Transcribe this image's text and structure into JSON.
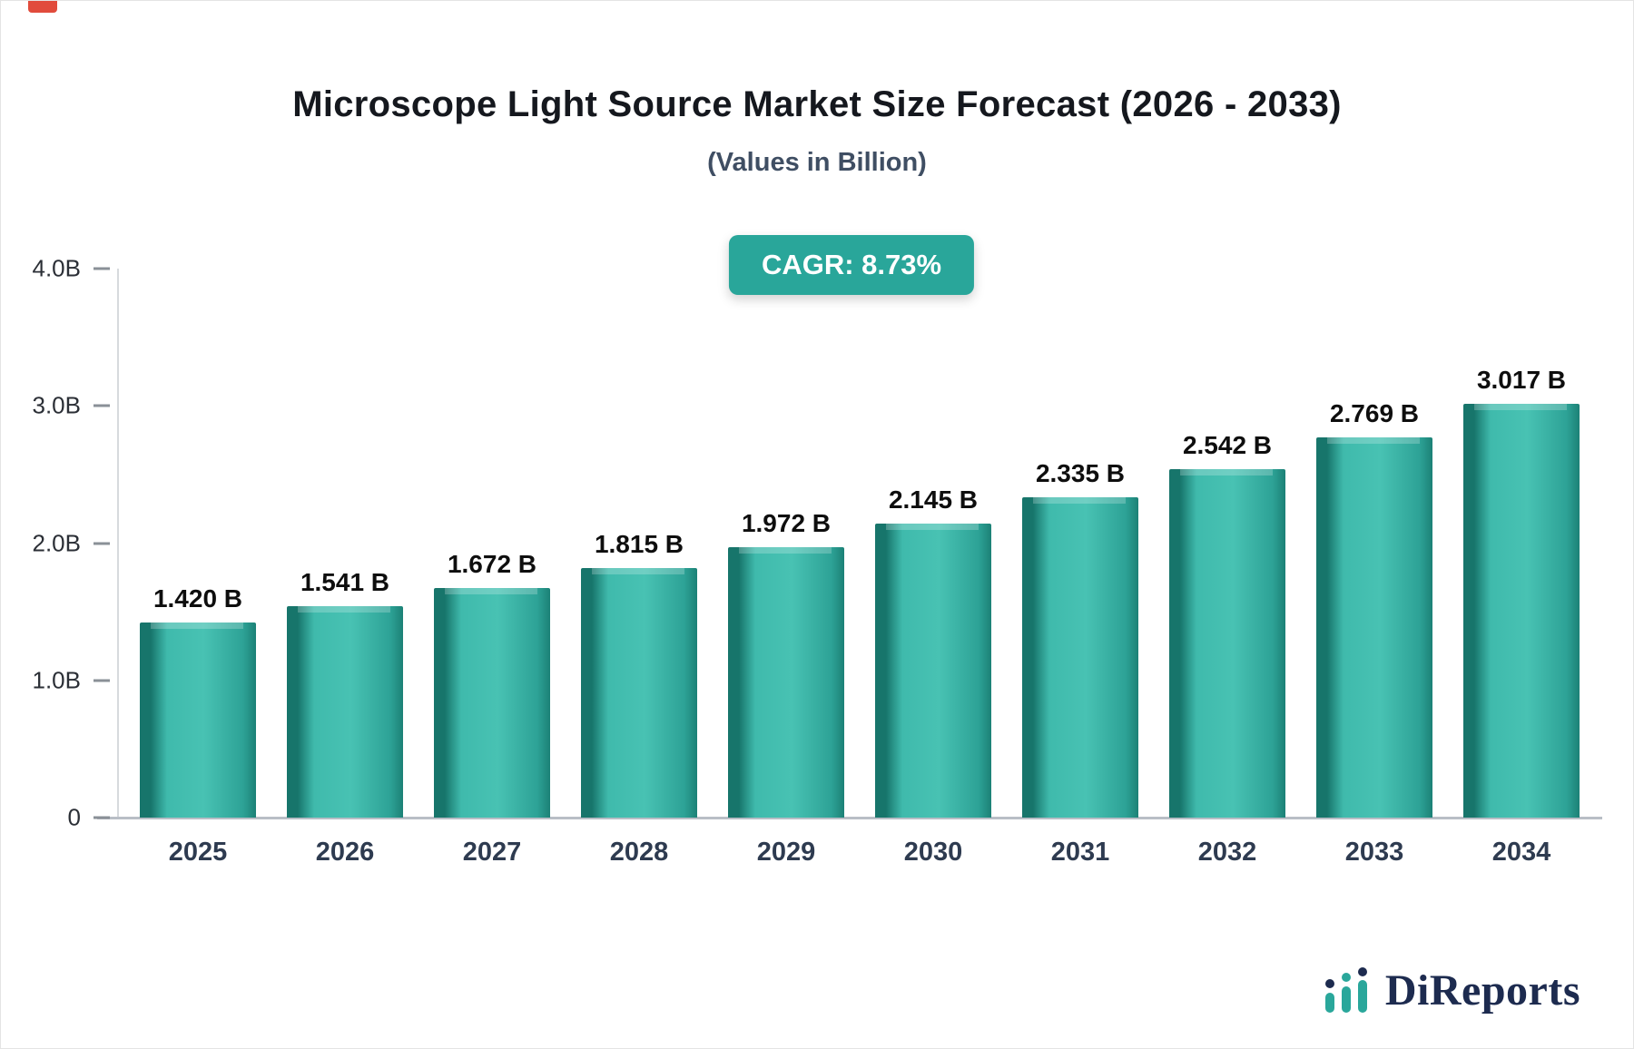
{
  "header": {
    "title": "Microscope Light Source Market Size Forecast (2026 - 2033)",
    "subtitle": "(Values in Billion)",
    "cagr_label": "CAGR: 8.73%"
  },
  "chart_data": {
    "type": "bar",
    "title": "Microscope Light Source Market Size Forecast (2026 - 2033)",
    "subtitle": "(Values in Billion)",
    "unit": "Billion",
    "cagr": "8.73%",
    "categories": [
      "2025",
      "2026",
      "2027",
      "2028",
      "2029",
      "2030",
      "2031",
      "2032",
      "2033",
      "2034"
    ],
    "values": [
      1.42,
      1.541,
      1.672,
      1.815,
      1.972,
      2.145,
      2.335,
      2.542,
      2.769,
      3.017
    ],
    "value_labels": [
      "1.420 B",
      "1.541 B",
      "1.672 B",
      "1.815 B",
      "1.972 B",
      "2.145 B",
      "2.335 B",
      "2.542 B",
      "2.769 B",
      "3.017 B"
    ],
    "xlabel": "",
    "ylabel": "",
    "ylim": [
      0,
      4.0
    ],
    "yticks": [
      {
        "value": 0,
        "label": "0"
      },
      {
        "value": 1.0,
        "label": "1.0B"
      },
      {
        "value": 2.0,
        "label": "2.0B"
      },
      {
        "value": 3.0,
        "label": "3.0B"
      },
      {
        "value": 4.0,
        "label": "4.0B"
      }
    ],
    "grid": false,
    "legend": false,
    "bar_color_body": "#3fbaac",
    "bar_color_edge": "#17756b",
    "bar_color_right": "#1c8176"
  },
  "branding": {
    "logo_text": "DiReports",
    "logo_icon": "bar-chart-logo-icon",
    "logo_text_color": "#1d2b4f",
    "logo_icon_color": "#2aa79b"
  },
  "colors": {
    "accent_teal": "#29a69a",
    "badge_bg": "#29a69a",
    "title_text": "#15181e",
    "subtitle_text": "#3f4e63",
    "axis_label": "#2e3b50",
    "baseline": "#b9bec6",
    "corner_mark": "#e14b3c"
  }
}
